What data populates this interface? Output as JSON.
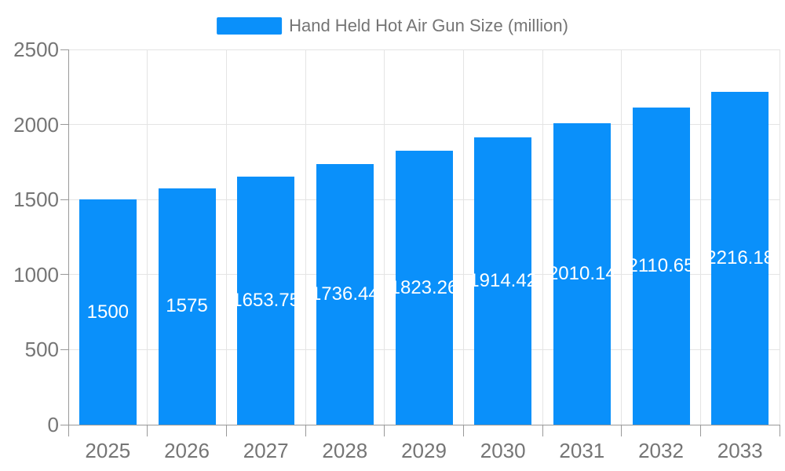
{
  "chart_data": {
    "type": "bar",
    "title": "",
    "legend": "Hand Held Hot Air Gun Size (million)",
    "legend_position": "top",
    "categories": [
      "2025",
      "2026",
      "2027",
      "2028",
      "2029",
      "2030",
      "2031",
      "2032",
      "2033"
    ],
    "series": [
      {
        "name": "Hand Held Hot Air Gun Size (million)",
        "values": [
          1500,
          1575,
          1653.75,
          1736.44,
          1823.26,
          1914.42,
          2010.14,
          2110.65,
          2216.18
        ],
        "labels": [
          "1500",
          "1575",
          "1653.75",
          "1736.44",
          "1823.26",
          "1914.42",
          "2010.14",
          "2110.65",
          "2216.18"
        ]
      }
    ],
    "xlabel": "",
    "ylabel": "",
    "ylim": [
      0,
      2500
    ],
    "yticks": [
      0,
      500,
      1000,
      1500,
      2000,
      2500
    ],
    "grid": true,
    "colors": {
      "bar": "#0a90fa",
      "axis": "#999999",
      "grid": "#e4e4e4",
      "text": "#757575",
      "bar_label": "#ffffff",
      "background": "#ffffff"
    }
  }
}
